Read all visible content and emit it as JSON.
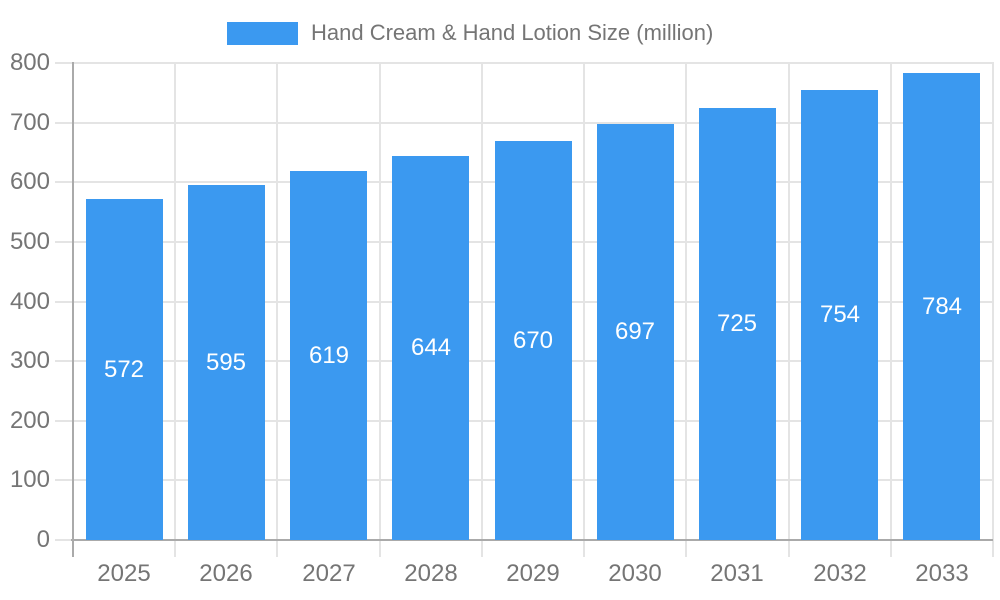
{
  "chart_data": {
    "type": "bar",
    "title": "Hand Cream & Hand Lotion Size (million)",
    "legend": [
      "Hand Cream & Hand Lotion Size (million)"
    ],
    "legend_position": "top",
    "categories": [
      "2025",
      "2026",
      "2027",
      "2028",
      "2029",
      "2030",
      "2031",
      "2032",
      "2033"
    ],
    "values": [
      572,
      595,
      619,
      644,
      670,
      697,
      725,
      754,
      784
    ],
    "xlabel": "",
    "ylabel": "",
    "ylim": [
      0,
      800
    ],
    "ytick_step": 100,
    "ytick_labels": [
      "0",
      "100",
      "200",
      "300",
      "400",
      "500",
      "600",
      "700",
      "800"
    ],
    "grid": true,
    "bar_labels_visible": true
  },
  "colors": {
    "bar": "#3B99F0",
    "bar_label": "#FFFFFF",
    "grid": "#E4E4E4",
    "axis": "#AAAAAA",
    "tick_text": "#757575",
    "legend_text": "#757575",
    "background": "#FFFFFF"
  }
}
